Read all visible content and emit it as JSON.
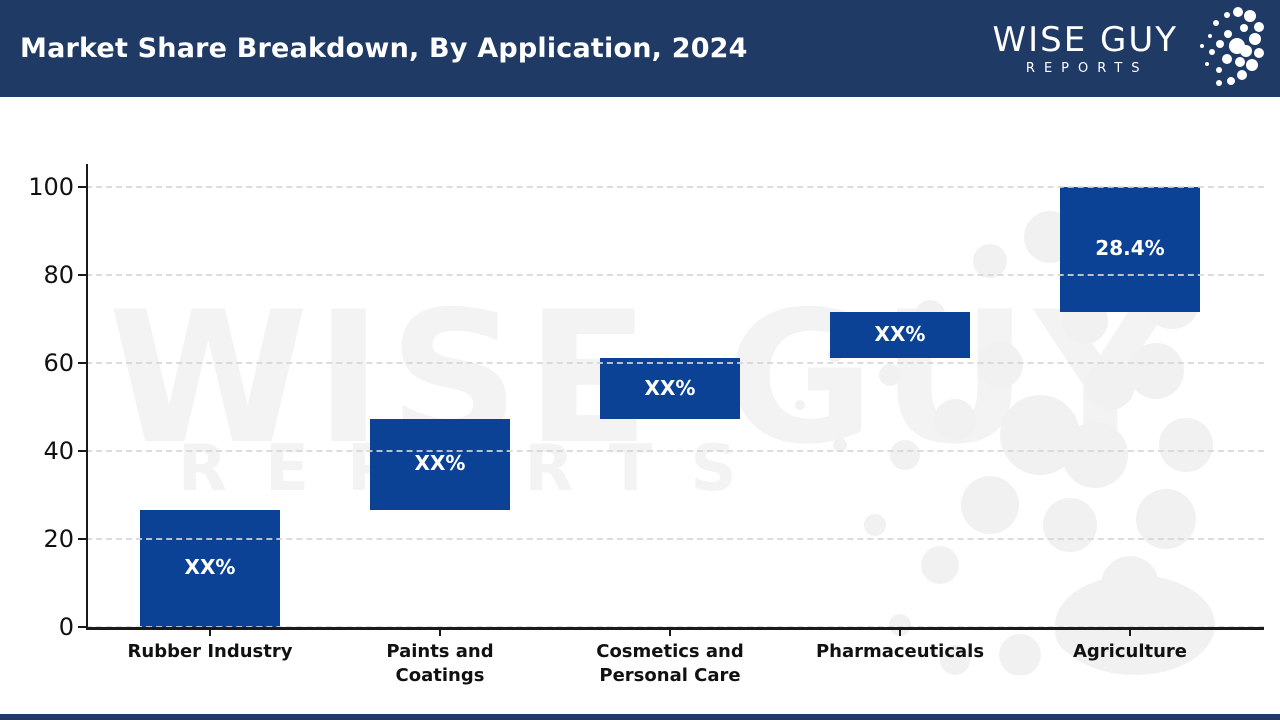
{
  "header": {
    "title": "Market Share Breakdown, By Application, 2024",
    "logo": {
      "name": "WISE GUY",
      "tagline": "REPORTS"
    }
  },
  "watermark": {
    "name": "WISE GUY",
    "tagline": "REPORTS"
  },
  "chart_data": {
    "type": "bar",
    "subtype": "floating-waterfall",
    "title": "Market Share Breakdown, By Application, 2024",
    "xlabel": "",
    "ylabel": "",
    "categories": [
      "Rubber Industry",
      "Paints and\nCoatings",
      "Cosmetics and\nPersonal Care",
      "Pharmaceuticals",
      "Agriculture"
    ],
    "segments": [
      {
        "category": "Rubber Industry",
        "start": 0,
        "end": 26.6,
        "height": 26.6,
        "label": "XX%"
      },
      {
        "category": "Paints and Coatings",
        "start": 26.6,
        "end": 47.3,
        "height": 20.7,
        "label": "XX%"
      },
      {
        "category": "Cosmetics and Personal Care",
        "start": 47.3,
        "end": 61.1,
        "height": 13.8,
        "label": "XX%"
      },
      {
        "category": "Pharmaceuticals",
        "start": 61.1,
        "end": 71.6,
        "height": 10.5,
        "label": "XX%"
      },
      {
        "category": "Agriculture",
        "start": 71.6,
        "end": 100,
        "height": 28.4,
        "label": "28.4%",
        "value": 28.4
      }
    ],
    "yticks": [
      0,
      20,
      40,
      60,
      80,
      100
    ],
    "ylim": [
      0,
      105
    ],
    "grid": "dashed-horizontal",
    "legend": "none",
    "bar_color": "#0b4295",
    "label_color": "#ffffff",
    "axis_color": "#1a1a1a",
    "grid_color": "#d6d6d6",
    "header_color": "#203a66",
    "watermark_color": "#f3f3f3"
  }
}
